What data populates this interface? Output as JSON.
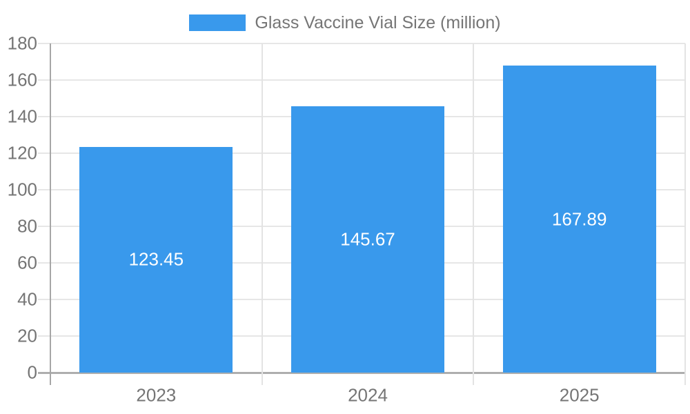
{
  "legend": {
    "label": "Glass Vaccine Vial Size (million)"
  },
  "chart_data": {
    "type": "bar",
    "title": "Glass Vaccine Vial Size (million)",
    "categories": [
      "2023",
      "2024",
      "2025"
    ],
    "series": [
      {
        "name": "Glass Vaccine Vial Size (million)",
        "values": [
          123.45,
          145.67,
          167.89
        ]
      }
    ],
    "data_labels": [
      "123.45",
      "145.67",
      "167.89"
    ],
    "xlabel": "",
    "ylabel": "",
    "ylim": [
      0,
      180
    ],
    "ytick_step": 20,
    "ytick_labels": [
      "0",
      "20",
      "40",
      "60",
      "80",
      "100",
      "120",
      "140",
      "160",
      "180"
    ],
    "grid": true,
    "legend_position": "top",
    "colors": {
      "bar": "#3999ec",
      "axis_text": "#757575",
      "gridline": "#e6e6e6",
      "category_divider": "#e3e3e3",
      "baseline": "#aeaeae",
      "axis_line": "#a6a6a6",
      "data_label": "#ffffff",
      "background": "#ffffff"
    }
  }
}
